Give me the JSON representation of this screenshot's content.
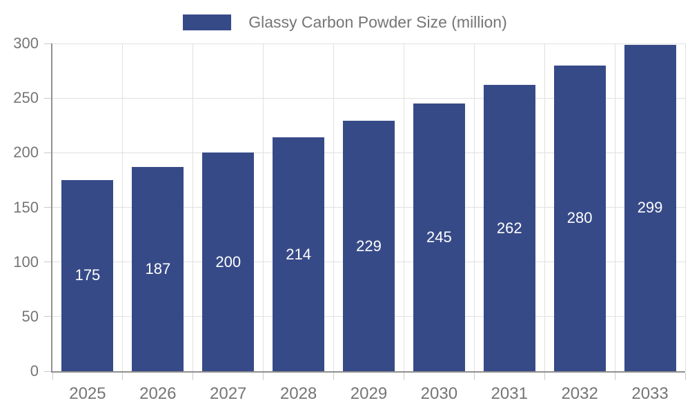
{
  "legend": {
    "label": "Glassy Carbon Powder Size (million)"
  },
  "chart_data": {
    "type": "bar",
    "title": "Glassy Carbon Powder Size (million)",
    "categories": [
      "2025",
      "2026",
      "2027",
      "2028",
      "2029",
      "2030",
      "2031",
      "2032",
      "2033"
    ],
    "values": [
      175,
      187,
      200,
      214,
      229,
      245,
      262,
      280,
      299
    ],
    "xlabel": "",
    "ylabel": "",
    "ylim": [
      0,
      300
    ],
    "yticks": [
      0,
      50,
      100,
      150,
      200,
      250,
      300
    ],
    "grid": true,
    "legend_position": "top-center",
    "bar_label_position": "inside-center",
    "bar_color": "#374a88",
    "bar_label_color": "#ffffff",
    "grid_color": "#e0e0e0",
    "axis_color": "#8f8f8f",
    "tick_color": "#c9c9c9",
    "tick_label_color": "#757575"
  }
}
